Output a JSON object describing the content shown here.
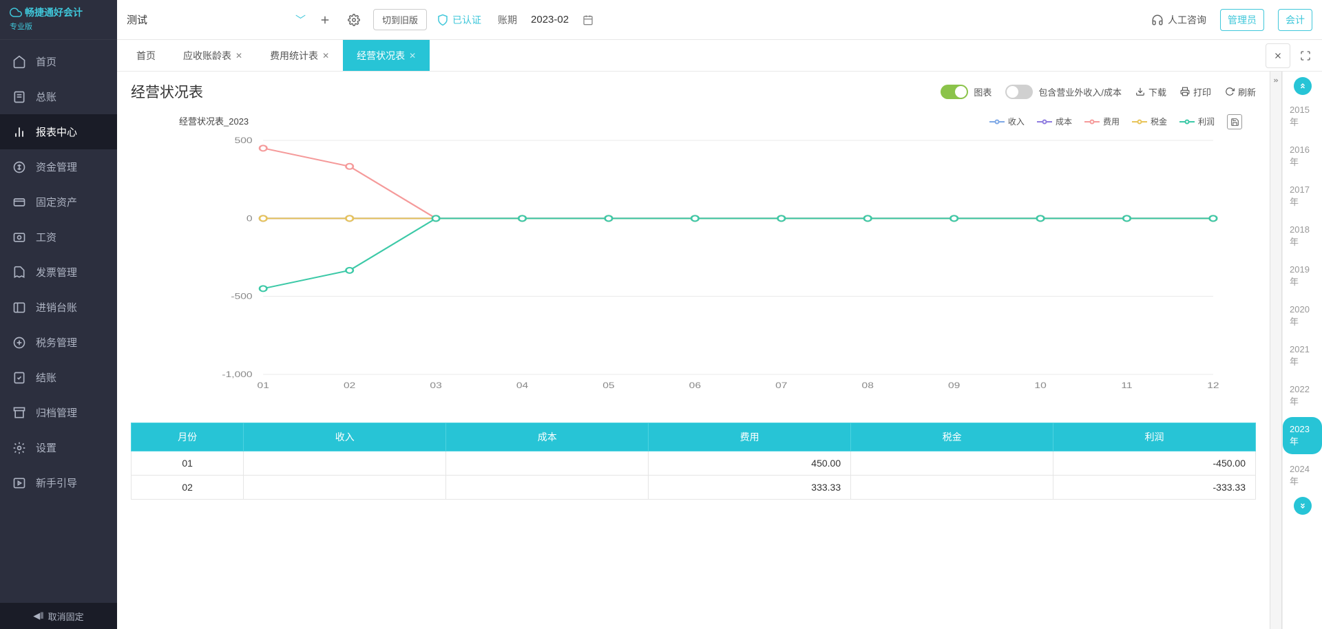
{
  "brand": {
    "name": "畅捷通好会计",
    "edition": "专业版"
  },
  "topbar": {
    "account_name": "测试",
    "old_version_btn": "切到旧版",
    "verified_label": "已认证",
    "period_label": "账期",
    "period_value": "2023-02",
    "support_label": "人工咨询",
    "role_admin": "管理员",
    "role_acct": "会计"
  },
  "sidebar": {
    "items": [
      {
        "label": "首页",
        "icon": "home"
      },
      {
        "label": "总账",
        "icon": "ledger"
      },
      {
        "label": "报表中心",
        "icon": "chart",
        "active": true
      },
      {
        "label": "资金管理",
        "icon": "money"
      },
      {
        "label": "固定资产",
        "icon": "asset"
      },
      {
        "label": "工资",
        "icon": "salary"
      },
      {
        "label": "发票管理",
        "icon": "invoice"
      },
      {
        "label": "进销台账",
        "icon": "stock"
      },
      {
        "label": "税务管理",
        "icon": "tax"
      },
      {
        "label": "结账",
        "icon": "close"
      },
      {
        "label": "归档管理",
        "icon": "archive"
      },
      {
        "label": "设置",
        "icon": "settings"
      },
      {
        "label": "新手引导",
        "icon": "guide"
      }
    ],
    "pin_label": "取消固定"
  },
  "tabs": [
    {
      "label": "首页",
      "closable": false
    },
    {
      "label": "应收账龄表",
      "closable": true
    },
    {
      "label": "费用统计表",
      "closable": true
    },
    {
      "label": "经营状况表",
      "closable": true,
      "active": true
    }
  ],
  "page": {
    "title": "经营状况表",
    "chart_toggle_label": "图表",
    "include_other_label": "包含营业外收入/成本",
    "download_label": "下载",
    "print_label": "打印",
    "refresh_label": "刷新"
  },
  "chart": {
    "title": "经营状况表_2023",
    "type": "line",
    "x_categories": [
      "01",
      "02",
      "03",
      "04",
      "05",
      "06",
      "07",
      "08",
      "09",
      "10",
      "11",
      "12"
    ],
    "y_ticks": [
      -1000,
      -500,
      0,
      500
    ],
    "ylim": [
      -1000,
      500
    ],
    "series": [
      {
        "name": "收入",
        "color": "#7ea8e6",
        "data": [
          0,
          0,
          0,
          0,
          0,
          0,
          0,
          0,
          0,
          0,
          0,
          0
        ]
      },
      {
        "name": "成本",
        "color": "#8f7ce0",
        "data": [
          0,
          0,
          0,
          0,
          0,
          0,
          0,
          0,
          0,
          0,
          0,
          0
        ]
      },
      {
        "name": "费用",
        "color": "#f59a9a",
        "data": [
          450,
          333.33,
          0,
          0,
          0,
          0,
          0,
          0,
          0,
          0,
          0,
          0
        ]
      },
      {
        "name": "税金",
        "color": "#e8c45a",
        "data": [
          0,
          0,
          0,
          0,
          0,
          0,
          0,
          0,
          0,
          0,
          0,
          0
        ]
      },
      {
        "name": "利润",
        "color": "#3cc9a7",
        "data": [
          -450,
          -333.33,
          0,
          0,
          0,
          0,
          0,
          0,
          0,
          0,
          0,
          0
        ]
      }
    ],
    "grid_color": "#e8e8e8",
    "axis_text_color": "#888888",
    "background": "#ffffff",
    "marker_radius": 4,
    "line_width": 2
  },
  "table": {
    "columns": [
      "月份",
      "收入",
      "成本",
      "费用",
      "税金",
      "利润"
    ],
    "col_widths_pct": [
      10,
      18,
      18,
      18,
      18,
      18
    ],
    "header_bg": "#27c4d6",
    "header_text": "#ffffff",
    "rows": [
      {
        "month": "01",
        "income": "",
        "cost": "",
        "expense": "450.00",
        "tax": "",
        "profit": "-450.00"
      },
      {
        "month": "02",
        "income": "",
        "cost": "",
        "expense": "333.33",
        "tax": "",
        "profit": "-333.33"
      }
    ]
  },
  "years": {
    "list": [
      "2015年",
      "2016年",
      "2017年",
      "2018年",
      "2019年",
      "2020年",
      "2021年",
      "2022年",
      "2023年",
      "2024年"
    ],
    "active": "2023年"
  }
}
